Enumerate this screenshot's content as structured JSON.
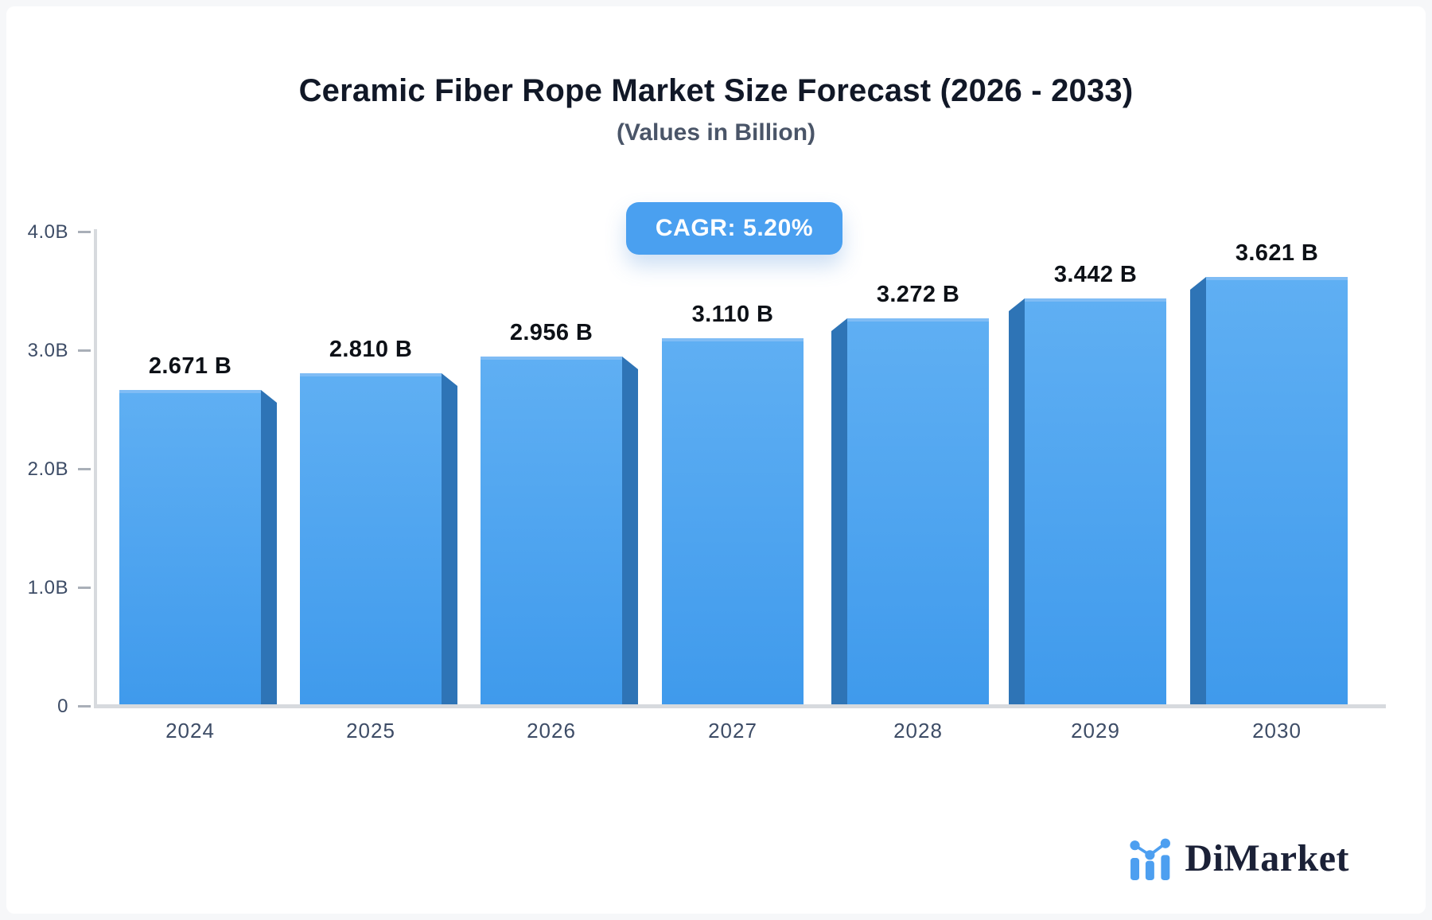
{
  "header": {
    "title": "Ceramic Fiber Rope Market Size Forecast (2026 - 2033)",
    "subtitle": "(Values in Billion)",
    "cagr_label": "CAGR: 5.20%"
  },
  "chart_data": {
    "type": "bar",
    "title": "Ceramic Fiber Rope Market Size Forecast (2026 - 2033)",
    "subtitle": "(Values in Billion)",
    "cagr": "5.20%",
    "categories": [
      "2024",
      "2025",
      "2026",
      "2027",
      "2028",
      "2029",
      "2030"
    ],
    "values": [
      2.671,
      2.81,
      2.956,
      3.11,
      3.272,
      3.442,
      3.621
    ],
    "value_labels": [
      "2.671 B",
      "2.810 B",
      "2.956 B",
      "3.110 B",
      "3.272 B",
      "3.442 B",
      "3.621 B"
    ],
    "xlabel": "",
    "ylabel": "",
    "ylim": [
      0,
      4
    ],
    "yticks": [
      {
        "label": "4.0B",
        "value": 4.0
      },
      {
        "label": "3.0B",
        "value": 3.0
      },
      {
        "label": "2.0B",
        "value": 2.0
      },
      {
        "label": "1.0B",
        "value": 1.0
      },
      {
        "label": "0",
        "value": 0.0
      }
    ],
    "grid": false,
    "legend": false,
    "bar_style": "3d-extruded"
  },
  "branding": {
    "logo_text": "DiMarket",
    "logo_icon": "bar-chart-sparkline-icon"
  },
  "colors": {
    "background": "#F6F7F9",
    "card": "#FFFFFF",
    "bar_face_top": "#5FAFF3",
    "bar_face_bottom": "#3F9AEC",
    "bar_highlight": "#7FBCF5",
    "bar_side": "#2E74B6",
    "badge_bg": "#4AA0F0",
    "axis": "#D7DADE",
    "tick": "#A9AFB8",
    "axis_text": "#3D4C66",
    "value_text": "#0D1117",
    "title_text": "#111827",
    "logo_blue": "#4D9FF0",
    "logo_navy": "#1B2137"
  }
}
